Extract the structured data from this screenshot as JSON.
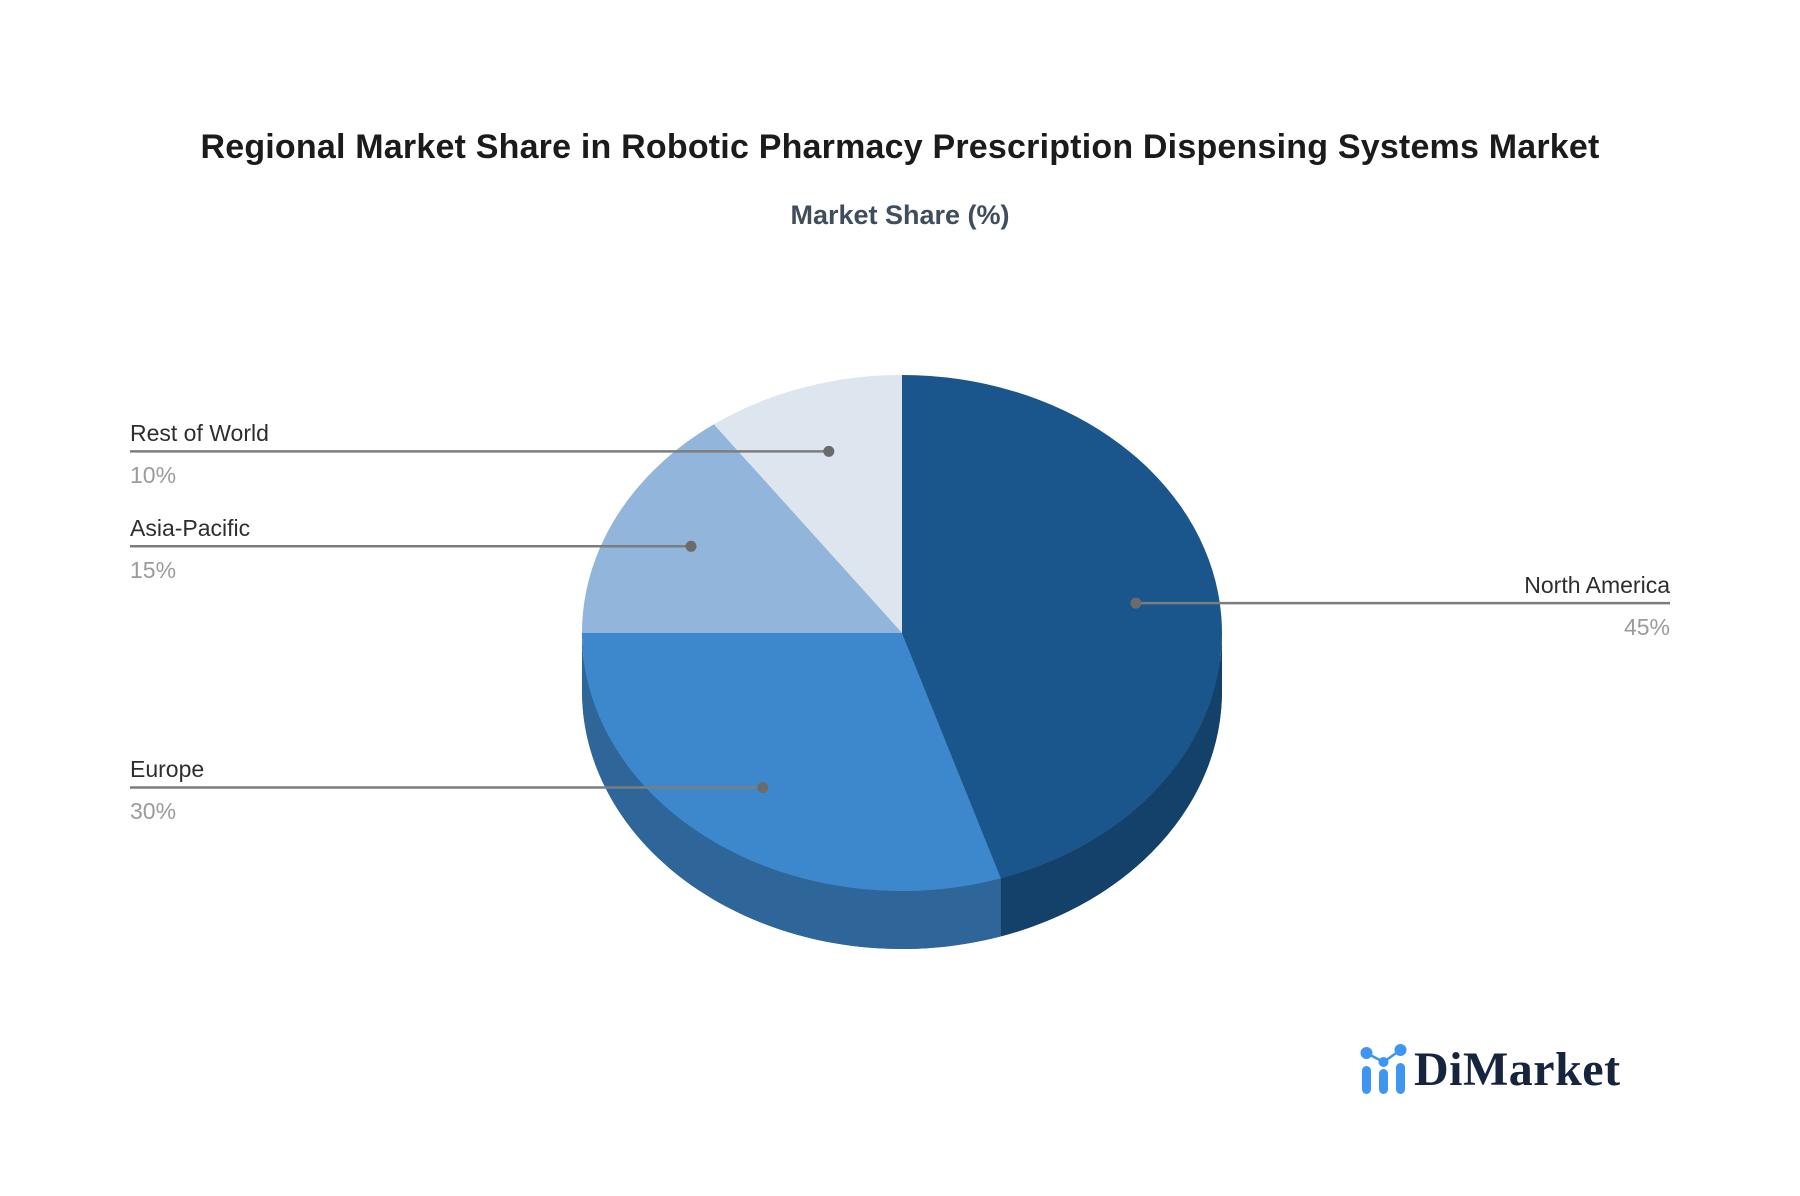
{
  "header": {
    "title": "Regional Market Share in Robotic Pharmacy Prescription Dispensing Systems Market",
    "subtitle": "Market Share (%)"
  },
  "chart_data": {
    "type": "pie",
    "title": "Regional Market Share in Robotic Pharmacy Prescription Dispensing Systems Market",
    "subtitle": "Market Share (%)",
    "unit": "%",
    "style_3d": true,
    "start_angle": "12-o-clock",
    "direction": "clockwise",
    "legend_position": "callout-labels",
    "slices": [
      {
        "name": "North America",
        "value": 45,
        "pct_label": "45%",
        "color": "#1a568c",
        "label_side": "right"
      },
      {
        "name": "Europe",
        "value": 30,
        "pct_label": "30%",
        "color": "#3d88cc",
        "label_side": "left"
      },
      {
        "name": "Asia-Pacific",
        "value": 15,
        "pct_label": "15%",
        "color": "#92b5db",
        "label_side": "left"
      },
      {
        "name": "Rest of World",
        "value": 10,
        "pct_label": "10%",
        "color": "#dde5ef",
        "label_side": "left"
      }
    ]
  },
  "callout": {
    "line_color": "#7d7d7d",
    "dot_color": "#6b6b6b",
    "label_color": "#2e2e2e",
    "pct_color": "#9b9b9b"
  },
  "logo": {
    "text": "DiMarket",
    "accent_color": "#3e96f2",
    "text_color": "#16243d"
  }
}
